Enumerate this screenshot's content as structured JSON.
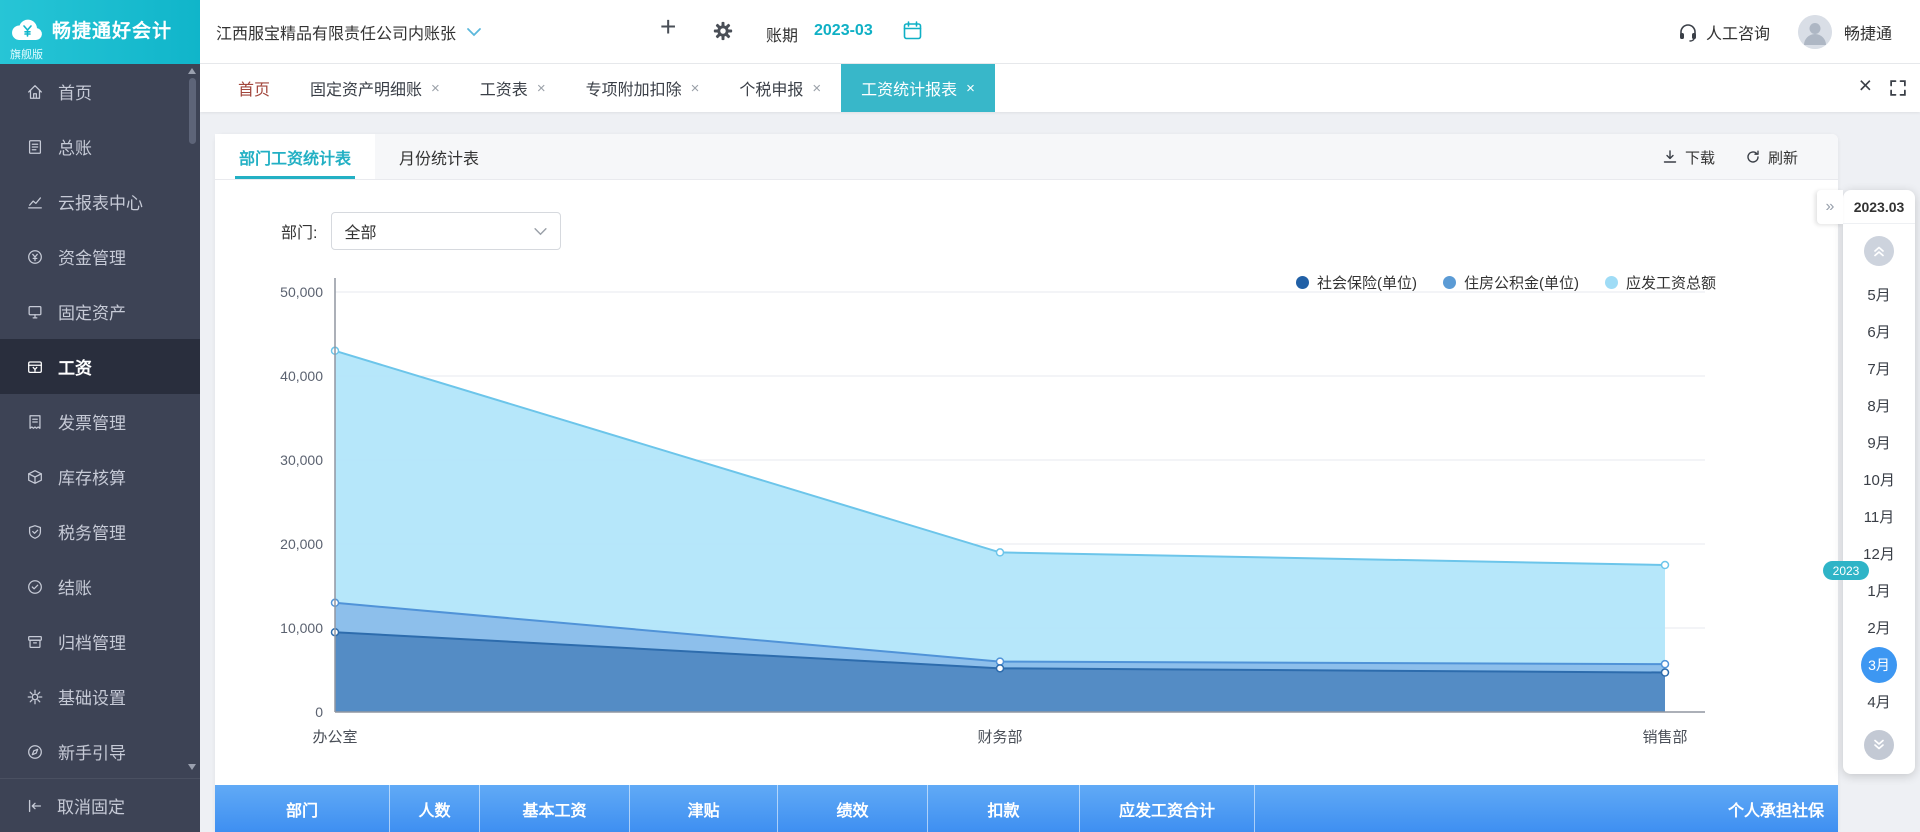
{
  "brand": {
    "name": "畅捷通好会计",
    "edition": "旗舰版"
  },
  "topbar": {
    "company": "江西服宝精品有限责任公司内账张",
    "period_label": "账期",
    "period_value": "2023-03",
    "consult_label": "人工咨询",
    "user_name": "畅捷通"
  },
  "tabs": [
    {
      "label": "首页",
      "closable": false,
      "active": false
    },
    {
      "label": "固定资产明细账",
      "closable": true,
      "active": false
    },
    {
      "label": "工资表",
      "closable": true,
      "active": false
    },
    {
      "label": "专项附加扣除",
      "closable": true,
      "active": false
    },
    {
      "label": "个税申报",
      "closable": true,
      "active": false
    },
    {
      "label": "工资统计报表",
      "closable": true,
      "active": true
    }
  ],
  "sidebar": {
    "active_index": 5,
    "unpin_label": "取消固定",
    "items": [
      {
        "label": "首页",
        "icon": "home-icon"
      },
      {
        "label": "总账",
        "icon": "ledger-icon"
      },
      {
        "label": "云报表中心",
        "icon": "report-icon"
      },
      {
        "label": "资金管理",
        "icon": "funds-icon"
      },
      {
        "label": "固定资产",
        "icon": "asset-icon"
      },
      {
        "label": "工资",
        "icon": "salary-icon"
      },
      {
        "label": "发票管理",
        "icon": "invoice-icon"
      },
      {
        "label": "库存核算",
        "icon": "inventory-icon"
      },
      {
        "label": "税务管理",
        "icon": "tax-icon"
      },
      {
        "label": "结账",
        "icon": "closing-icon"
      },
      {
        "label": "归档管理",
        "icon": "archive-icon"
      },
      {
        "label": "基础设置",
        "icon": "settings-icon"
      },
      {
        "label": "新手引导",
        "icon": "guide-icon"
      }
    ]
  },
  "card": {
    "subtabs": [
      {
        "label": "部门工资统计表",
        "active": true
      },
      {
        "label": "月份统计表",
        "active": false
      }
    ],
    "download_label": "下载",
    "refresh_label": "刷新",
    "filter_label": "部门:",
    "filter_value": "全部",
    "table_headers": [
      "部门",
      "人数",
      "基本工资",
      "津贴",
      "绩效",
      "扣款",
      "应发工资合计",
      "个人承担社保"
    ]
  },
  "chart_data": {
    "type": "area",
    "categories": [
      "办公室",
      "财务部",
      "销售部"
    ],
    "series": [
      {
        "name": "社会保险(单位)",
        "values": [
          9500,
          5200,
          4700
        ],
        "line": "#2d6cad",
        "fill": "#4e86c1",
        "fill_opacity": 0.9,
        "legend": "#2160a6"
      },
      {
        "name": "住房公积金(单位)",
        "values": [
          13000,
          6000,
          5700
        ],
        "line": "#5093d8",
        "fill": "#86b7e8",
        "fill_opacity": 0.85,
        "legend": "#5b9bd5"
      },
      {
        "name": "应发工资总额",
        "values": [
          43000,
          19000,
          17500
        ],
        "line": "#6cc5ea",
        "fill": "#b2e6fa",
        "fill_opacity": 0.95,
        "legend": "#9fdcf6"
      }
    ],
    "ylim": [
      0,
      50000
    ],
    "yticks": [
      0,
      10000,
      20000,
      30000,
      40000,
      50000
    ],
    "xlabel": "",
    "ylabel": "",
    "grid": true,
    "legend_position": "top-right"
  },
  "datepanel": {
    "current": "2023.03",
    "year_badge": "2023",
    "months": [
      "5月",
      "6月",
      "7月",
      "8月",
      "9月",
      "10月",
      "11月",
      "12月",
      "1月",
      "2月",
      "3月",
      "4月"
    ],
    "active_month_index": 10
  }
}
